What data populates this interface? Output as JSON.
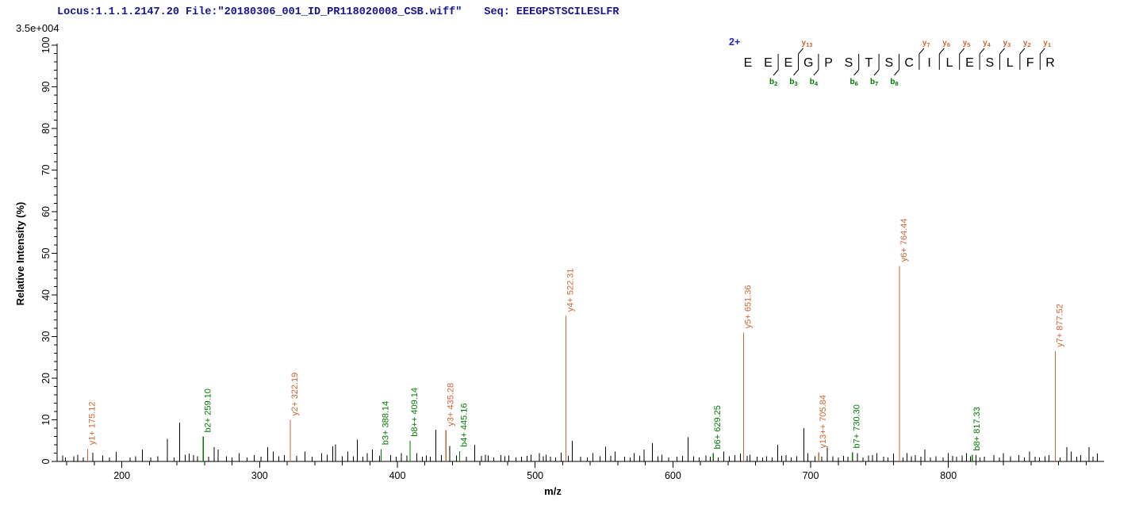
{
  "header": {
    "locus_file": "Locus:1.1.1.2147.20 File:\"20180306_001_ID_PR118020008_CSB.wiff\"",
    "seq_text": "Seq: EEEGPSTSCILESLFR"
  },
  "colors": {
    "header_text": "#15158d",
    "y_ion": "#cc6633",
    "b_ion": "#007a00",
    "charge": "#2323cc",
    "axis": "#000000",
    "noise_peak": "#000000",
    "residue": "#000000"
  },
  "chart_data": {
    "type": "bar",
    "subtype": "ms2-fragmentation-spectrum",
    "intensity_scale": "3.5e+004",
    "xlabel": "m/z",
    "ylabel": "Relative Intensity (%)",
    "xlim": [
      153,
      913
    ],
    "ylim": [
      0,
      100
    ],
    "x_major_ticks": [
      200,
      300,
      400,
      500,
      600,
      700,
      800
    ],
    "x_minor_step": 20,
    "y_major_step": 10,
    "y_minor_step": 2,
    "grid": false,
    "precursor_charge": "2+",
    "peptide": "EEEGPSTSCILESLFR",
    "fragments": [
      {
        "ion": "y1+",
        "mz": 175.12,
        "mz_text": "175.12",
        "pct": 3.0,
        "series": "y"
      },
      {
        "ion": "b2+",
        "mz": 259.1,
        "mz_text": "259.10",
        "pct": 6.0,
        "series": "b"
      },
      {
        "ion": "y2+",
        "mz": 322.19,
        "mz_text": "322.19",
        "pct": 10.0,
        "series": "y"
      },
      {
        "ion": "b3+",
        "mz": 388.14,
        "mz_text": "388.14",
        "pct": 3.0,
        "series": "b"
      },
      {
        "ion": "b8++",
        "mz": 409.14,
        "mz_text": "409.14",
        "pct": 5.0,
        "series": "b"
      },
      {
        "ion": "y3+",
        "mz": 435.28,
        "mz_text": "435.28",
        "pct": 7.5,
        "series": "y"
      },
      {
        "ion": "b4+",
        "mz": 445.16,
        "mz_text": "445.16",
        "pct": 2.5,
        "series": "b"
      },
      {
        "ion": "y4+",
        "mz": 522.31,
        "mz_text": "522.31",
        "pct": 35.0,
        "series": "y"
      },
      {
        "ion": "b6+",
        "mz": 629.25,
        "mz_text": "629.25",
        "pct": 2.0,
        "series": "b"
      },
      {
        "ion": "y5+",
        "mz": 651.36,
        "mz_text": "651.36",
        "pct": 31.0,
        "series": "y"
      },
      {
        "ion": "y13++",
        "mz": 705.84,
        "mz_text": "705.84",
        "pct": 2.2,
        "series": "y"
      },
      {
        "ion": "b7+",
        "mz": 730.3,
        "mz_text": "730.30",
        "pct": 2.2,
        "series": "b"
      },
      {
        "ion": "y6+",
        "mz": 764.44,
        "mz_text": "764.44",
        "pct": 47.0,
        "series": "y"
      },
      {
        "ion": "b8+",
        "mz": 817.33,
        "mz_text": "817.33",
        "pct": 1.6,
        "series": "b"
      },
      {
        "ion": "y7+",
        "mz": 877.52,
        "mz_text": "877.52",
        "pct": 26.5,
        "series": "y"
      }
    ],
    "sequence_cuts": [
      {
        "after": 2,
        "b": "b2"
      },
      {
        "after": 3,
        "b": "b3",
        "y": "y13"
      },
      {
        "after": 4,
        "b": "b4"
      },
      {
        "after": 6,
        "b": "b6"
      },
      {
        "after": 7,
        "b": "b7"
      },
      {
        "after": 8,
        "b": "b8"
      },
      {
        "after": 9,
        "y": "y7"
      },
      {
        "after": 10,
        "y": "y6"
      },
      {
        "after": 11,
        "y": "y5"
      },
      {
        "after": 12,
        "y": "y4"
      },
      {
        "after": 13,
        "y": "y3"
      },
      {
        "after": 14,
        "y": "y2"
      },
      {
        "after": 15,
        "y": "y1"
      }
    ],
    "noise_peaks": [
      [
        157,
        1.4
      ],
      [
        159,
        1.0
      ],
      [
        165,
        1.2
      ],
      [
        168,
        1.6
      ],
      [
        172,
        1.0
      ],
      [
        179,
        2.1
      ],
      [
        186,
        1.4
      ],
      [
        191,
        1.0
      ],
      [
        196,
        2.3
      ],
      [
        206,
        1.0
      ],
      [
        210,
        1.2
      ],
      [
        215,
        2.9
      ],
      [
        221,
        1.0
      ],
      [
        226,
        1.2
      ],
      [
        233,
        5.4
      ],
      [
        238,
        1.0
      ],
      [
        242,
        9.3
      ],
      [
        246,
        1.6
      ],
      [
        249,
        1.9
      ],
      [
        252,
        1.5
      ],
      [
        255,
        1.2
      ],
      [
        263,
        1.1
      ],
      [
        267,
        3.4
      ],
      [
        270,
        2.9
      ],
      [
        276,
        1.2
      ],
      [
        280,
        1.0
      ],
      [
        285,
        2.0
      ],
      [
        291,
        1.0
      ],
      [
        296,
        1.5
      ],
      [
        301,
        1.1
      ],
      [
        306,
        3.4
      ],
      [
        310,
        2.4
      ],
      [
        314,
        1.2
      ],
      [
        318,
        1.5
      ],
      [
        327,
        1.3
      ],
      [
        333,
        2.4
      ],
      [
        338,
        1.1
      ],
      [
        345,
        2.0
      ],
      [
        349,
        1.6
      ],
      [
        353,
        3.6
      ],
      [
        355,
        4.1
      ],
      [
        360,
        1.2
      ],
      [
        364,
        2.4
      ],
      [
        368,
        1.2
      ],
      [
        371,
        5.2
      ],
      [
        375,
        1.1
      ],
      [
        378,
        2.0
      ],
      [
        382,
        2.9
      ],
      [
        387,
        1.3
      ],
      [
        395,
        1.5
      ],
      [
        399,
        1.1
      ],
      [
        403,
        2.0
      ],
      [
        407,
        1.4
      ],
      [
        414,
        2.0
      ],
      [
        418,
        1.1
      ],
      [
        421,
        1.4
      ],
      [
        424,
        1.1
      ],
      [
        428,
        7.6
      ],
      [
        432,
        1.5
      ],
      [
        438,
        3.7
      ],
      [
        443,
        1.4
      ],
      [
        450,
        1.1
      ],
      [
        456,
        4.0
      ],
      [
        461,
        1.3
      ],
      [
        464,
        1.6
      ],
      [
        466,
        1.4
      ],
      [
        470,
        1.0
      ],
      [
        475,
        1.5
      ],
      [
        478,
        1.2
      ],
      [
        481,
        1.4
      ],
      [
        486,
        1.0
      ],
      [
        490,
        1.1
      ],
      [
        494,
        1.3
      ],
      [
        497,
        1.6
      ],
      [
        503,
        2.0
      ],
      [
        506,
        1.2
      ],
      [
        508,
        1.6
      ],
      [
        511,
        1.1
      ],
      [
        515,
        1.0
      ],
      [
        519,
        2.1
      ],
      [
        524,
        1.3
      ],
      [
        527,
        5.0
      ],
      [
        533,
        1.1
      ],
      [
        538,
        1.0
      ],
      [
        542,
        2.0
      ],
      [
        547,
        1.2
      ],
      [
        551,
        3.5
      ],
      [
        555,
        1.3
      ],
      [
        558,
        2.4
      ],
      [
        565,
        1.1
      ],
      [
        569,
        1.0
      ],
      [
        572,
        2.0
      ],
      [
        576,
        1.3
      ],
      [
        579,
        2.9
      ],
      [
        585,
        4.4
      ],
      [
        589,
        1.2
      ],
      [
        592,
        1.6
      ],
      [
        597,
        1.0
      ],
      [
        603,
        1.1
      ],
      [
        607,
        1.3
      ],
      [
        611,
        5.8
      ],
      [
        615,
        1.2
      ],
      [
        619,
        1.0
      ],
      [
        624,
        1.4
      ],
      [
        627,
        1.1
      ],
      [
        633,
        1.0
      ],
      [
        637,
        2.4
      ],
      [
        641,
        1.2
      ],
      [
        645,
        1.5
      ],
      [
        649,
        1.9
      ],
      [
        654,
        1.3
      ],
      [
        656,
        1.6
      ],
      [
        661,
        1.1
      ],
      [
        665,
        1.0
      ],
      [
        668,
        1.2
      ],
      [
        672,
        1.0
      ],
      [
        676,
        4.0
      ],
      [
        679,
        1.3
      ],
      [
        682,
        1.5
      ],
      [
        686,
        1.0
      ],
      [
        690,
        1.2
      ],
      [
        695,
        8.0
      ],
      [
        698,
        2.0
      ],
      [
        703,
        1.2
      ],
      [
        708,
        1.1
      ],
      [
        712,
        3.6
      ],
      [
        716,
        1.2
      ],
      [
        720,
        1.0
      ],
      [
        724,
        1.3
      ],
      [
        727,
        1.1
      ],
      [
        734,
        2.0
      ],
      [
        738,
        1.0
      ],
      [
        742,
        1.4
      ],
      [
        745,
        1.5
      ],
      [
        748,
        2.0
      ],
      [
        753,
        1.1
      ],
      [
        756,
        1.0
      ],
      [
        760,
        1.9
      ],
      [
        767,
        1.0
      ],
      [
        770,
        2.0
      ],
      [
        773,
        1.2
      ],
      [
        776,
        1.5
      ],
      [
        780,
        1.1
      ],
      [
        783,
        2.9
      ],
      [
        787,
        1.0
      ],
      [
        791,
        1.2
      ],
      [
        796,
        1.0
      ],
      [
        800,
        2.0
      ],
      [
        803,
        1.3
      ],
      [
        806,
        1.1
      ],
      [
        810,
        1.4
      ],
      [
        813,
        2.0
      ],
      [
        816,
        1.2
      ],
      [
        820,
        1.5
      ],
      [
        823,
        1.0
      ],
      [
        826,
        1.1
      ],
      [
        833,
        1.5
      ],
      [
        837,
        1.0
      ],
      [
        840,
        2.0
      ],
      [
        845,
        1.2
      ],
      [
        851,
        1.5
      ],
      [
        855,
        1.0
      ],
      [
        859,
        2.4
      ],
      [
        863,
        1.1
      ],
      [
        866,
        1.0
      ],
      [
        870,
        1.2
      ],
      [
        873,
        1.5
      ],
      [
        881,
        1.0
      ],
      [
        886,
        3.4
      ],
      [
        889,
        2.4
      ],
      [
        893,
        1.1
      ],
      [
        896,
        1.5
      ],
      [
        902,
        3.4
      ],
      [
        905,
        1.1
      ],
      [
        908,
        1.9
      ]
    ]
  }
}
